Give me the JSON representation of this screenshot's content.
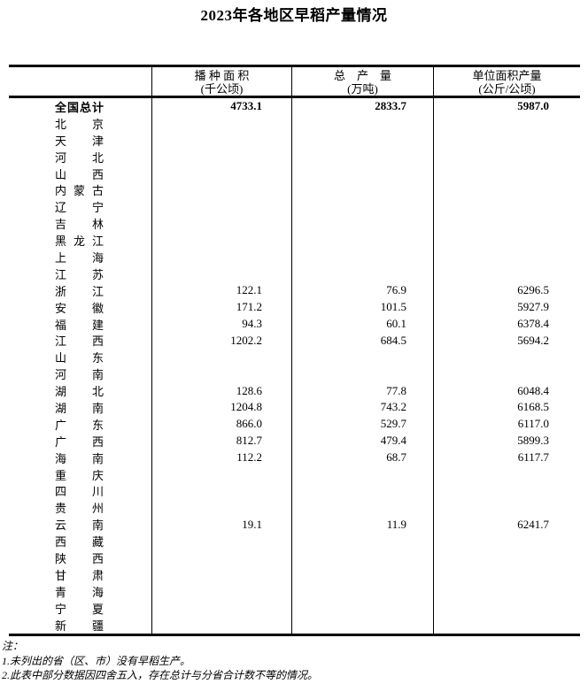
{
  "title": "2023年各地区早稻产量情况",
  "table": {
    "columns": [
      {
        "label": "播 种 面 积",
        "unit": "(千公顷)"
      },
      {
        "label": "总　产　量",
        "unit": "(万吨)"
      },
      {
        "label": "单位面积产量",
        "unit": "(公斤/公顷)"
      }
    ],
    "rows": [
      {
        "region": "全国总计",
        "sown_area": "4733.1",
        "output": "2833.7",
        "yield": "5987.0",
        "bold": true
      },
      {
        "region": "北京",
        "sown_area": "",
        "output": "",
        "yield": "",
        "bold": false
      },
      {
        "region": "天津",
        "sown_area": "",
        "output": "",
        "yield": "",
        "bold": false
      },
      {
        "region": "河北",
        "sown_area": "",
        "output": "",
        "yield": "",
        "bold": false
      },
      {
        "region": "山西",
        "sown_area": "",
        "output": "",
        "yield": "",
        "bold": false
      },
      {
        "region": "内蒙古",
        "sown_area": "",
        "output": "",
        "yield": "",
        "bold": false
      },
      {
        "region": "辽宁",
        "sown_area": "",
        "output": "",
        "yield": "",
        "bold": false
      },
      {
        "region": "吉林",
        "sown_area": "",
        "output": "",
        "yield": "",
        "bold": false
      },
      {
        "region": "黑龙江",
        "sown_area": "",
        "output": "",
        "yield": "",
        "bold": false
      },
      {
        "region": "上海",
        "sown_area": "",
        "output": "",
        "yield": "",
        "bold": false
      },
      {
        "region": "江苏",
        "sown_area": "",
        "output": "",
        "yield": "",
        "bold": false
      },
      {
        "region": "浙江",
        "sown_area": "122.1",
        "output": "76.9",
        "yield": "6296.5",
        "bold": false
      },
      {
        "region": "安徽",
        "sown_area": "171.2",
        "output": "101.5",
        "yield": "5927.9",
        "bold": false
      },
      {
        "region": "福建",
        "sown_area": "94.3",
        "output": "60.1",
        "yield": "6378.4",
        "bold": false
      },
      {
        "region": "江西",
        "sown_area": "1202.2",
        "output": "684.5",
        "yield": "5694.2",
        "bold": false
      },
      {
        "region": "山东",
        "sown_area": "",
        "output": "",
        "yield": "",
        "bold": false
      },
      {
        "region": "河南",
        "sown_area": "",
        "output": "",
        "yield": "",
        "bold": false
      },
      {
        "region": "湖北",
        "sown_area": "128.6",
        "output": "77.8",
        "yield": "6048.4",
        "bold": false
      },
      {
        "region": "湖南",
        "sown_area": "1204.8",
        "output": "743.2",
        "yield": "6168.5",
        "bold": false
      },
      {
        "region": "广东",
        "sown_area": "866.0",
        "output": "529.7",
        "yield": "6117.0",
        "bold": false
      },
      {
        "region": "广西",
        "sown_area": "812.7",
        "output": "479.4",
        "yield": "5899.3",
        "bold": false
      },
      {
        "region": "海南",
        "sown_area": "112.2",
        "output": "68.7",
        "yield": "6117.7",
        "bold": false
      },
      {
        "region": "重庆",
        "sown_area": "",
        "output": "",
        "yield": "",
        "bold": false
      },
      {
        "region": "四川",
        "sown_area": "",
        "output": "",
        "yield": "",
        "bold": false
      },
      {
        "region": "贵州",
        "sown_area": "",
        "output": "",
        "yield": "",
        "bold": false
      },
      {
        "region": "云南",
        "sown_area": "19.1",
        "output": "11.9",
        "yield": "6241.7",
        "bold": false
      },
      {
        "region": "西藏",
        "sown_area": "",
        "output": "",
        "yield": "",
        "bold": false
      },
      {
        "region": "陕西",
        "sown_area": "",
        "output": "",
        "yield": "",
        "bold": false
      },
      {
        "region": "甘肃",
        "sown_area": "",
        "output": "",
        "yield": "",
        "bold": false
      },
      {
        "region": "青海",
        "sown_area": "",
        "output": "",
        "yield": "",
        "bold": false
      },
      {
        "region": "宁夏",
        "sown_area": "",
        "output": "",
        "yield": "",
        "bold": false
      },
      {
        "region": "新疆",
        "sown_area": "",
        "output": "",
        "yield": "",
        "bold": false
      }
    ]
  },
  "notes": {
    "label": "注：",
    "items": [
      "1.未列出的省（区、市）没有早稻生产。",
      "2.此表中部分数据因四舍五入，存在总计与分省合计数不等的情况。"
    ]
  }
}
